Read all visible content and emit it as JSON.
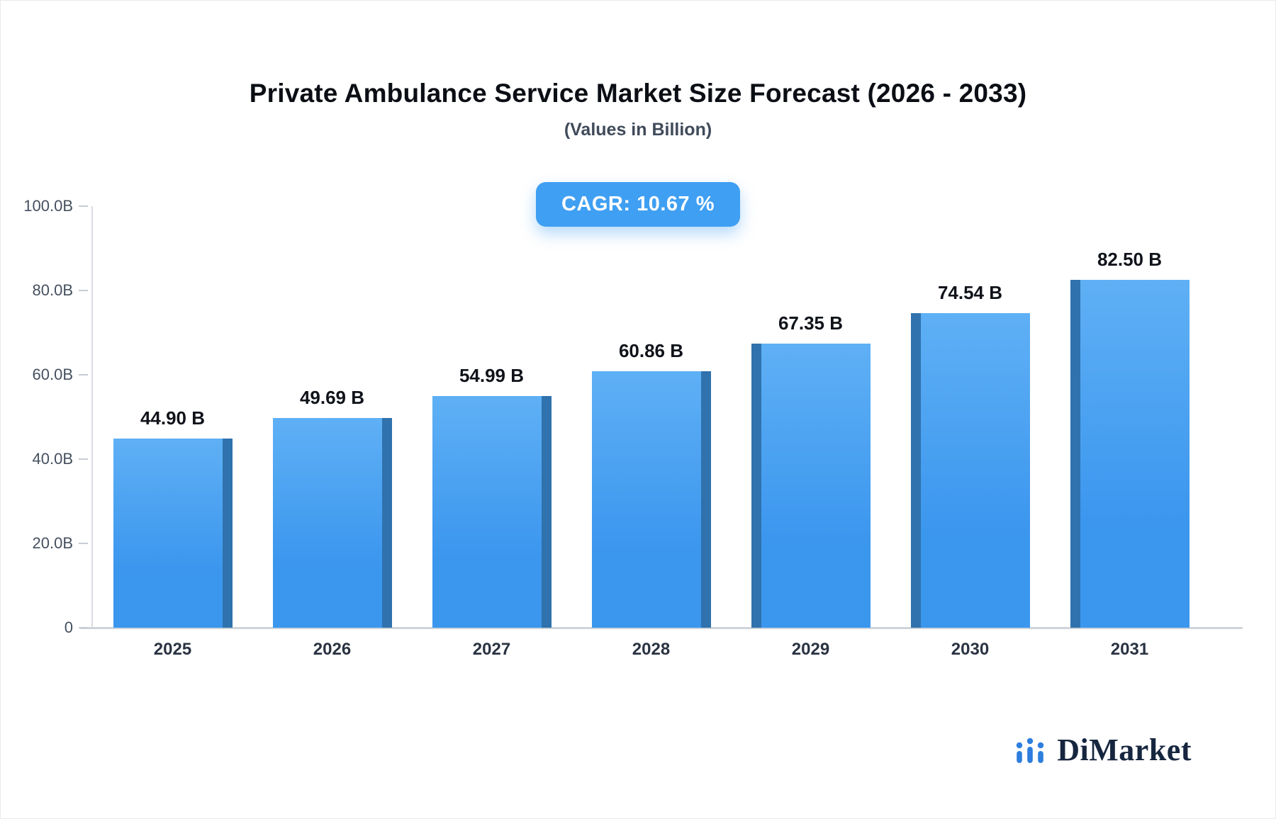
{
  "cagr_badge": "CAGR: 10.67 %",
  "branding": {
    "logo_text": "DiMarket",
    "logo_icon": "bar-chart-icon"
  },
  "colors": {
    "badge_background": "#3f9ff2",
    "bar_gradient_top": "#5fb0f5",
    "bar_gradient_bottom": "#3b96ee",
    "bar_side": "#2f72ad",
    "logo_icon_color": "#2d7ede",
    "logo_text_color": "#17263f"
  },
  "chart_data": {
    "type": "bar",
    "title": "Private Ambulance Service Market Size Forecast (2026 - 2033)",
    "subtitle": "(Values in Billion)",
    "categories": [
      "2025",
      "2026",
      "2027",
      "2028",
      "2029",
      "2030",
      "2031"
    ],
    "values": [
      44.9,
      49.69,
      54.99,
      60.86,
      67.35,
      74.54,
      82.5
    ],
    "value_labels": [
      "44.90 B",
      "49.69 B",
      "54.99 B",
      "60.86 B",
      "67.35 B",
      "74.54 B",
      "82.50 B"
    ],
    "ylabel": "",
    "xlabel": "",
    "ylim": [
      0,
      100
    ],
    "yticks": [
      {
        "value": 100,
        "label": "100.0B"
      },
      {
        "value": 80,
        "label": "80.0B"
      },
      {
        "value": 60,
        "label": "60.0B"
      },
      {
        "value": 40,
        "label": "40.0B"
      },
      {
        "value": 20,
        "label": "20.0B"
      },
      {
        "value": 0,
        "label": "0"
      }
    ],
    "grid": "off",
    "legend": "none"
  }
}
